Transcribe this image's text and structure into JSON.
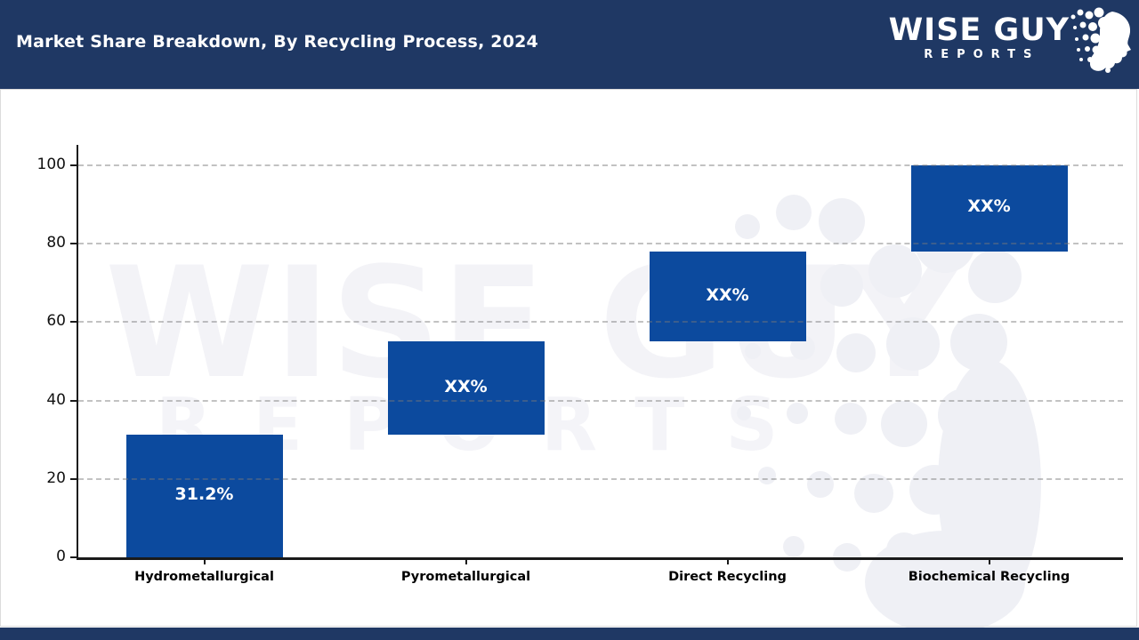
{
  "header": {
    "title": "Market Share Breakdown, By Recycling Process, 2024",
    "logo": {
      "line1": "WISE GUY",
      "line2": "REPORTS"
    }
  },
  "watermark": {
    "line1": "WISE GUY",
    "line2": "REPORTS"
  },
  "colors": {
    "header_bg": "#1f3864",
    "footer_bg": "#1f3864",
    "bar_fill": "#0c4a9e",
    "bar_label_text": "#ffffff",
    "axis": "#1a1a1a",
    "gridline": "#bdbdbd",
    "watermark": "#f3f3f7"
  },
  "chart_data": {
    "type": "bar",
    "subtype": "waterfall",
    "title": "Market Share Breakdown, By Recycling Process, 2024",
    "xlabel": "",
    "ylabel": "",
    "ylim": [
      0,
      100
    ],
    "yticks": [
      0,
      20,
      40,
      60,
      80,
      100
    ],
    "grid": "horizontal-dashed",
    "legend": "none",
    "categories": [
      "Hydrometallurgical",
      "Pyrometallurgical",
      "Direct Recycling",
      "Biochemical Recycling"
    ],
    "bars": [
      {
        "category": "Hydrometallurgical",
        "label": "31.2%",
        "start": 0,
        "end": 31.2
      },
      {
        "category": "Pyrometallurgical",
        "label": "XX%",
        "start": 31.2,
        "end": 55
      },
      {
        "category": "Direct Recycling",
        "label": "XX%",
        "start": 55,
        "end": 78
      },
      {
        "category": "Biochemical Recycling",
        "label": "XX%",
        "start": 78,
        "end": 100
      }
    ]
  }
}
